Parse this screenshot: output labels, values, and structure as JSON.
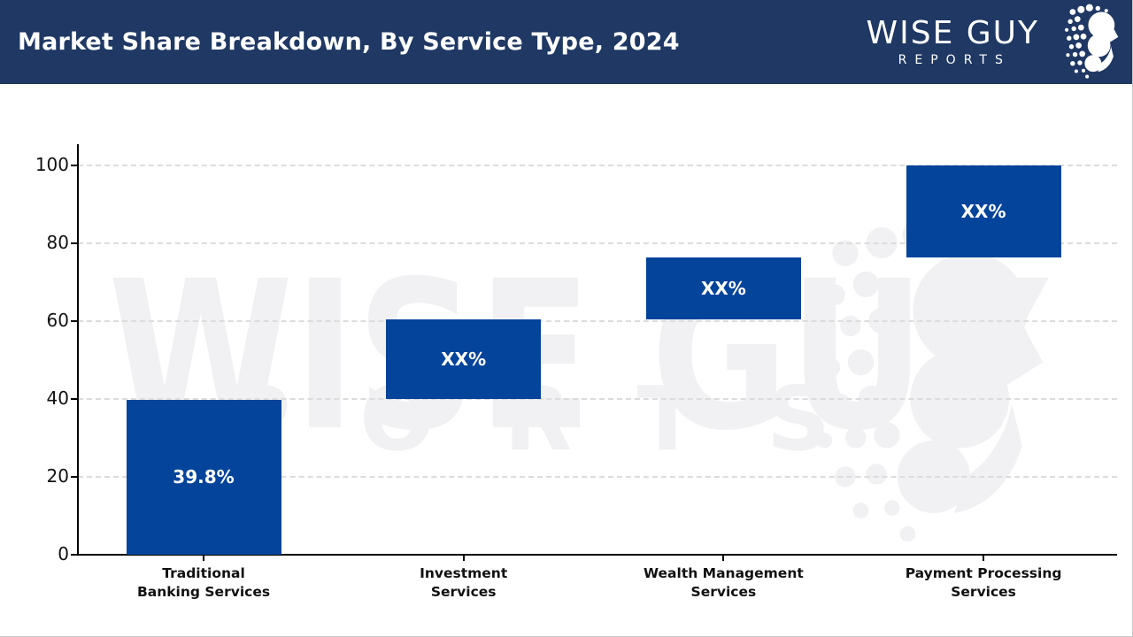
{
  "header": {
    "title": "Market Share Breakdown, By Service Type, 2024",
    "logo": {
      "wordmark": "WISE GUY",
      "subtext": "REPORTS"
    }
  },
  "watermark": {
    "line1": "WISE GUY",
    "line2": "PORTS"
  },
  "colors": {
    "header_bg": "#1f3864",
    "bar": "#04449b",
    "bar_label": "#ffffff",
    "grid": "#dcdcdc",
    "axis": "#000000",
    "tick_text": "#111111",
    "watermark": "#f1f1f3"
  },
  "chart_data": {
    "type": "bar",
    "subtype": "waterfall",
    "title": "Market Share Breakdown, By Service Type, 2024",
    "xlabel": "",
    "ylabel": "",
    "ylim": [
      0,
      100
    ],
    "yticks": [
      0,
      20,
      40,
      60,
      80,
      100
    ],
    "grid": "horizontal-dashed",
    "legend": "none",
    "categories": [
      [
        "Traditional",
        "Banking Services"
      ],
      [
        "Investment",
        "Services"
      ],
      [
        "Wealth Management",
        "Services"
      ],
      [
        "Payment Processing",
        "Services"
      ]
    ],
    "bars": [
      {
        "start": 0,
        "end": 39.8,
        "label": "39.8%"
      },
      {
        "start": 40,
        "end": 60.5,
        "label": "XX%"
      },
      {
        "start": 60.5,
        "end": 76.4,
        "label": "XX%"
      },
      {
        "start": 76.4,
        "end": 100,
        "label": "XX%"
      }
    ]
  }
}
